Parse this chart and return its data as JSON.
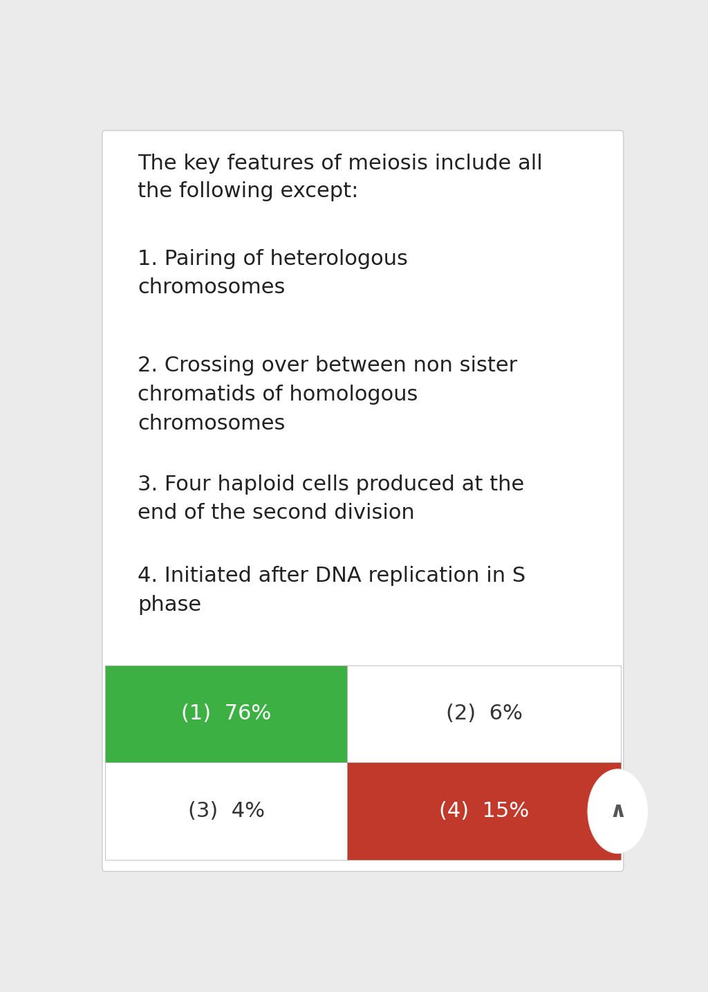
{
  "background_color": "#ebebeb",
  "card_background": "#ffffff",
  "card_border_color": "#cccccc",
  "question_text": "The key features of meiosis include all\nthe following except:",
  "options": [
    "1. Pairing of heterologous\nchromosomes",
    "2. Crossing over between non sister\nchromatids of homologous\nchromosomes",
    "3. Four haploid cells produced at the\nend of the second division",
    "4. Initiated after DNA replication in S\nphase"
  ],
  "answer_boxes": [
    {
      "label": "(1)  76%",
      "color": "#3cb043",
      "text_color": "#ffffff",
      "row": 0,
      "col": 0
    },
    {
      "label": "(2)  6%",
      "color": "#ffffff",
      "text_color": "#333333",
      "row": 0,
      "col": 1
    },
    {
      "label": "(3)  4%",
      "color": "#ffffff",
      "text_color": "#333333",
      "row": 1,
      "col": 0
    },
    {
      "label": "(4)  15%",
      "color": "#c0392b",
      "text_color": "#ffffff",
      "row": 1,
      "col": 1
    }
  ],
  "question_fontsize": 22,
  "option_fontsize": 22,
  "answer_fontsize": 22
}
